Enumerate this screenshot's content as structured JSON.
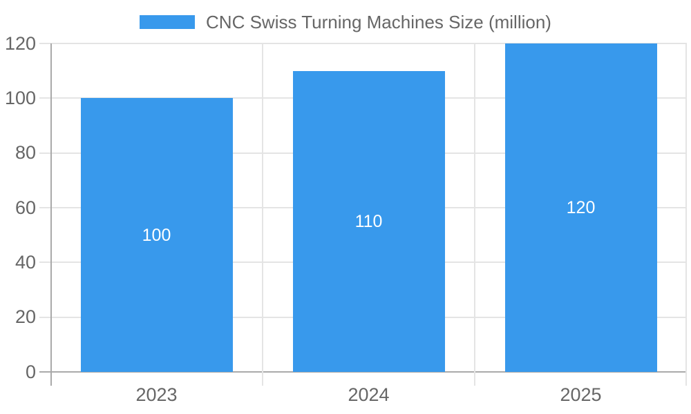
{
  "chart_data": {
    "type": "bar",
    "title": "CNC Swiss Turning Machines Size (million)",
    "categories": [
      "2023",
      "2024",
      "2025"
    ],
    "series": [
      {
        "name": "CNC Swiss Turning Machines Size (million)",
        "values": [
          100,
          110,
          120
        ]
      }
    ],
    "data_labels": [
      "100",
      "110",
      "120"
    ],
    "xlabel": "",
    "ylabel": "",
    "ylim": [
      0,
      120
    ],
    "yticks": [
      0,
      20,
      40,
      60,
      80,
      100,
      120
    ],
    "ytick_labels": [
      "0",
      "20",
      "40",
      "60",
      "80",
      "100",
      "120"
    ],
    "grid": true,
    "legend_position": "top",
    "colors": {
      "bar": "#3899EC",
      "data_label": "#FFFFFF",
      "axis_text": "#666666",
      "grid_line": "#E4E4E4",
      "axis_line": "#A9A9A9",
      "background": "#FFFFFF"
    }
  }
}
